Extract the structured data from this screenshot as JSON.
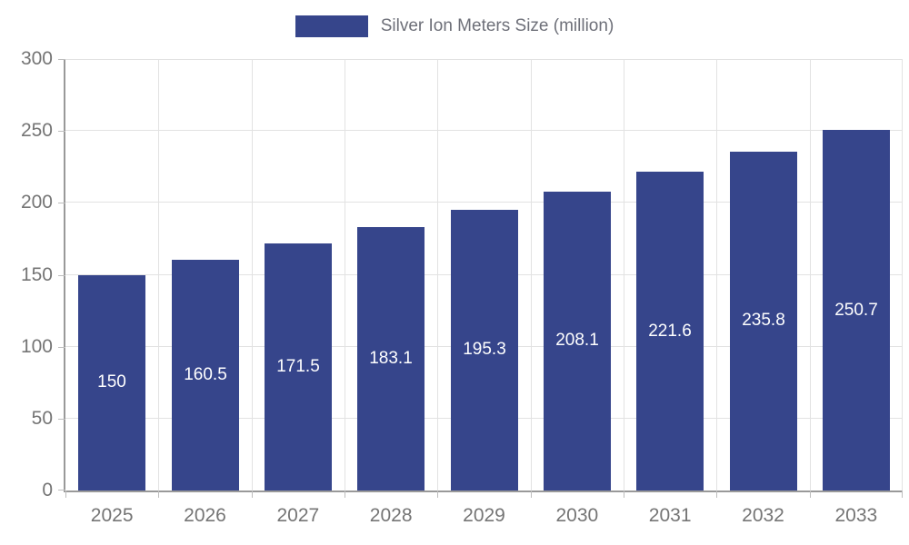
{
  "legend": {
    "label": "Silver Ion Meters Size (million)",
    "swatch_color": "#36458b"
  },
  "chart_data": {
    "type": "bar",
    "title": "",
    "categories": [
      "2025",
      "2026",
      "2027",
      "2028",
      "2029",
      "2030",
      "2031",
      "2032",
      "2033"
    ],
    "values": [
      150,
      160.5,
      171.5,
      183.1,
      195.3,
      208.1,
      221.6,
      235.8,
      250.7
    ],
    "value_labels": [
      "150",
      "160.5",
      "171.5",
      "183.1",
      "195.3",
      "208.1",
      "221.6",
      "235.8",
      "250.7"
    ],
    "series_name": "Silver Ion Meters Size (million)",
    "xlabel": "",
    "ylabel": "",
    "ylim": [
      0,
      300
    ],
    "ytick_step": 50,
    "yticks": [
      0,
      50,
      100,
      150,
      200,
      250,
      300
    ],
    "grid": true,
    "legend_position": "top",
    "bar_color": "#36458b",
    "value_label_color": "#ffffff",
    "axis_label_color": "#757575"
  }
}
